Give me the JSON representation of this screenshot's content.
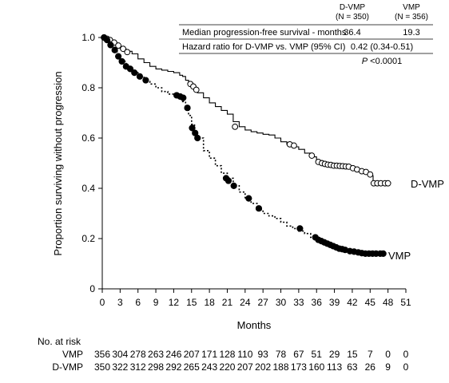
{
  "chart_data": {
    "type": "line",
    "title": "",
    "xlabel": "Months",
    "ylabel": "Proportion surviving without progression",
    "xlim": [
      0,
      51
    ],
    "ylim": [
      0,
      1.0
    ],
    "xticks": [
      0,
      3,
      6,
      9,
      12,
      15,
      18,
      21,
      24,
      27,
      30,
      33,
      36,
      39,
      42,
      45,
      48,
      51
    ],
    "yticks": [
      "0",
      "0.2",
      "0.4",
      "0.6",
      "0.8",
      "1.0"
    ],
    "yticks_values": [
      0,
      0.2,
      0.4,
      0.6,
      0.8,
      1.0
    ],
    "grid": false,
    "series": [
      {
        "name": "D-VMP",
        "style": "solid",
        "marker": "open-circle",
        "x": [
          0,
          0.5,
          1,
          1.5,
          2,
          2.5,
          3,
          4,
          5,
          6,
          7,
          8,
          9,
          10,
          11,
          12,
          13,
          13.5,
          14,
          14.5,
          15,
          15.5,
          16,
          17,
          18,
          19,
          20,
          21,
          22,
          23,
          24,
          25,
          26,
          27,
          28,
          29,
          30,
          31,
          32,
          33,
          34,
          35,
          36,
          37,
          38,
          39,
          40,
          41,
          42,
          43,
          44,
          45,
          45.5,
          46,
          47,
          48
        ],
        "y": [
          1.0,
          0.998,
          0.992,
          0.985,
          0.975,
          0.965,
          0.955,
          0.945,
          0.935,
          0.915,
          0.9,
          0.885,
          0.875,
          0.87,
          0.865,
          0.86,
          0.85,
          0.845,
          0.83,
          0.82,
          0.81,
          0.795,
          0.78,
          0.76,
          0.74,
          0.725,
          0.71,
          0.695,
          0.665,
          0.645,
          0.632,
          0.625,
          0.62,
          0.615,
          0.612,
          0.6,
          0.585,
          0.575,
          0.565,
          0.555,
          0.54,
          0.525,
          0.51,
          0.5,
          0.495,
          0.49,
          0.488,
          0.485,
          0.48,
          0.47,
          0.465,
          0.45,
          0.42,
          0.42,
          0.42,
          0.42
        ],
        "marker_x": [
          0.3,
          0.8,
          1.3,
          2,
          2.7,
          3.5,
          4.2,
          14.8,
          15.3,
          15.8,
          22.3,
          31.5,
          32.2,
          35.2,
          36.3,
          36.9,
          37.4,
          37.9,
          38.4,
          38.9,
          39.4,
          39.9,
          40.4,
          40.9,
          41.4,
          42.1,
          42.8,
          43.6,
          44.3,
          45.0,
          45.6,
          46.2,
          46.8,
          47.5,
          48.0
        ],
        "marker_y": [
          1.0,
          0.995,
          0.99,
          0.98,
          0.968,
          0.955,
          0.942,
          0.815,
          0.805,
          0.792,
          0.645,
          0.575,
          0.57,
          0.53,
          0.505,
          0.5,
          0.497,
          0.494,
          0.493,
          0.49,
          0.49,
          0.489,
          0.488,
          0.487,
          0.486,
          0.48,
          0.475,
          0.468,
          0.465,
          0.455,
          0.42,
          0.42,
          0.42,
          0.42,
          0.42
        ]
      },
      {
        "name": "VMP",
        "style": "dotted",
        "marker": "filled-circle",
        "x": [
          0,
          0.5,
          1,
          1.5,
          2,
          2.5,
          3,
          4,
          5,
          6,
          7,
          8,
          9,
          10,
          11,
          12,
          13,
          13.5,
          14,
          14.5,
          15,
          15.5,
          16,
          17,
          18,
          19,
          20,
          21,
          22,
          23,
          24,
          25,
          26,
          27,
          28,
          29,
          30,
          31,
          32,
          33,
          34,
          35,
          36,
          37,
          38,
          39,
          40,
          41,
          42,
          43,
          44,
          45,
          46,
          47
        ],
        "y": [
          1.0,
          0.995,
          0.985,
          0.965,
          0.945,
          0.925,
          0.905,
          0.885,
          0.865,
          0.845,
          0.825,
          0.815,
          0.8,
          0.785,
          0.775,
          0.77,
          0.76,
          0.745,
          0.72,
          0.69,
          0.655,
          0.625,
          0.6,
          0.55,
          0.52,
          0.49,
          0.46,
          0.44,
          0.41,
          0.385,
          0.36,
          0.34,
          0.315,
          0.3,
          0.29,
          0.28,
          0.265,
          0.25,
          0.24,
          0.23,
          0.22,
          0.205,
          0.195,
          0.185,
          0.175,
          0.165,
          0.16,
          0.155,
          0.15,
          0.145,
          0.14,
          0.14,
          0.14,
          0.14
        ],
        "marker_x": [
          0.3,
          0.8,
          1.4,
          2.1,
          2.7,
          3.3,
          4.0,
          4.7,
          5.4,
          6.3,
          7.3,
          12.5,
          13.1,
          13.6,
          14.3,
          15.1,
          15.6,
          16.0,
          20.8,
          21.2,
          22.1,
          24.6,
          26.3,
          33.2,
          35.8,
          36.3,
          36.8,
          37.3,
          37.8,
          38.3,
          38.8,
          39.3,
          39.8,
          40.3,
          40.8,
          41.6,
          42.3,
          43.0,
          43.6,
          44.2,
          44.8,
          45.4,
          46.0,
          46.7,
          47.2
        ],
        "marker_y": [
          1.0,
          0.99,
          0.97,
          0.95,
          0.925,
          0.905,
          0.885,
          0.875,
          0.86,
          0.845,
          0.83,
          0.77,
          0.765,
          0.76,
          0.72,
          0.64,
          0.62,
          0.6,
          0.44,
          0.43,
          0.41,
          0.36,
          0.32,
          0.24,
          0.205,
          0.195,
          0.19,
          0.185,
          0.18,
          0.175,
          0.17,
          0.165,
          0.16,
          0.158,
          0.155,
          0.15,
          0.148,
          0.145,
          0.142,
          0.14,
          0.14,
          0.14,
          0.14,
          0.14,
          0.14
        ]
      }
    ],
    "summary_table": {
      "col_headers": [
        {
          "label": "D-VMP",
          "sub": "(N = 350)"
        },
        {
          "label": "VMP",
          "sub": "(N = 356)"
        }
      ],
      "rows": [
        {
          "label": "Median progression-free survival - months",
          "dvmp": "36.4",
          "vmp": "19.3"
        },
        {
          "label": "Hazard ratio for D-VMP vs. VMP (95% CI)",
          "combined": "0.42 (0.34-0.51)"
        }
      ],
      "p_value_prefix": "P",
      "p_value_rest": " <0.0001"
    },
    "at_risk": {
      "title": "No. at risk",
      "rows": [
        {
          "label": "VMP",
          "values": [
            "356",
            "304",
            "278",
            "263",
            "246",
            "207",
            "171",
            "128",
            "110",
            "93",
            "78",
            "67",
            "51",
            "29",
            "15",
            "7",
            "0",
            "0"
          ]
        },
        {
          "label": "D-VMP",
          "values": [
            "350",
            "322",
            "312",
            "298",
            "292",
            "265",
            "243",
            "220",
            "207",
            "202",
            "188",
            "173",
            "160",
            "113",
            "63",
            "26",
            "9",
            "0"
          ]
        }
      ]
    }
  }
}
